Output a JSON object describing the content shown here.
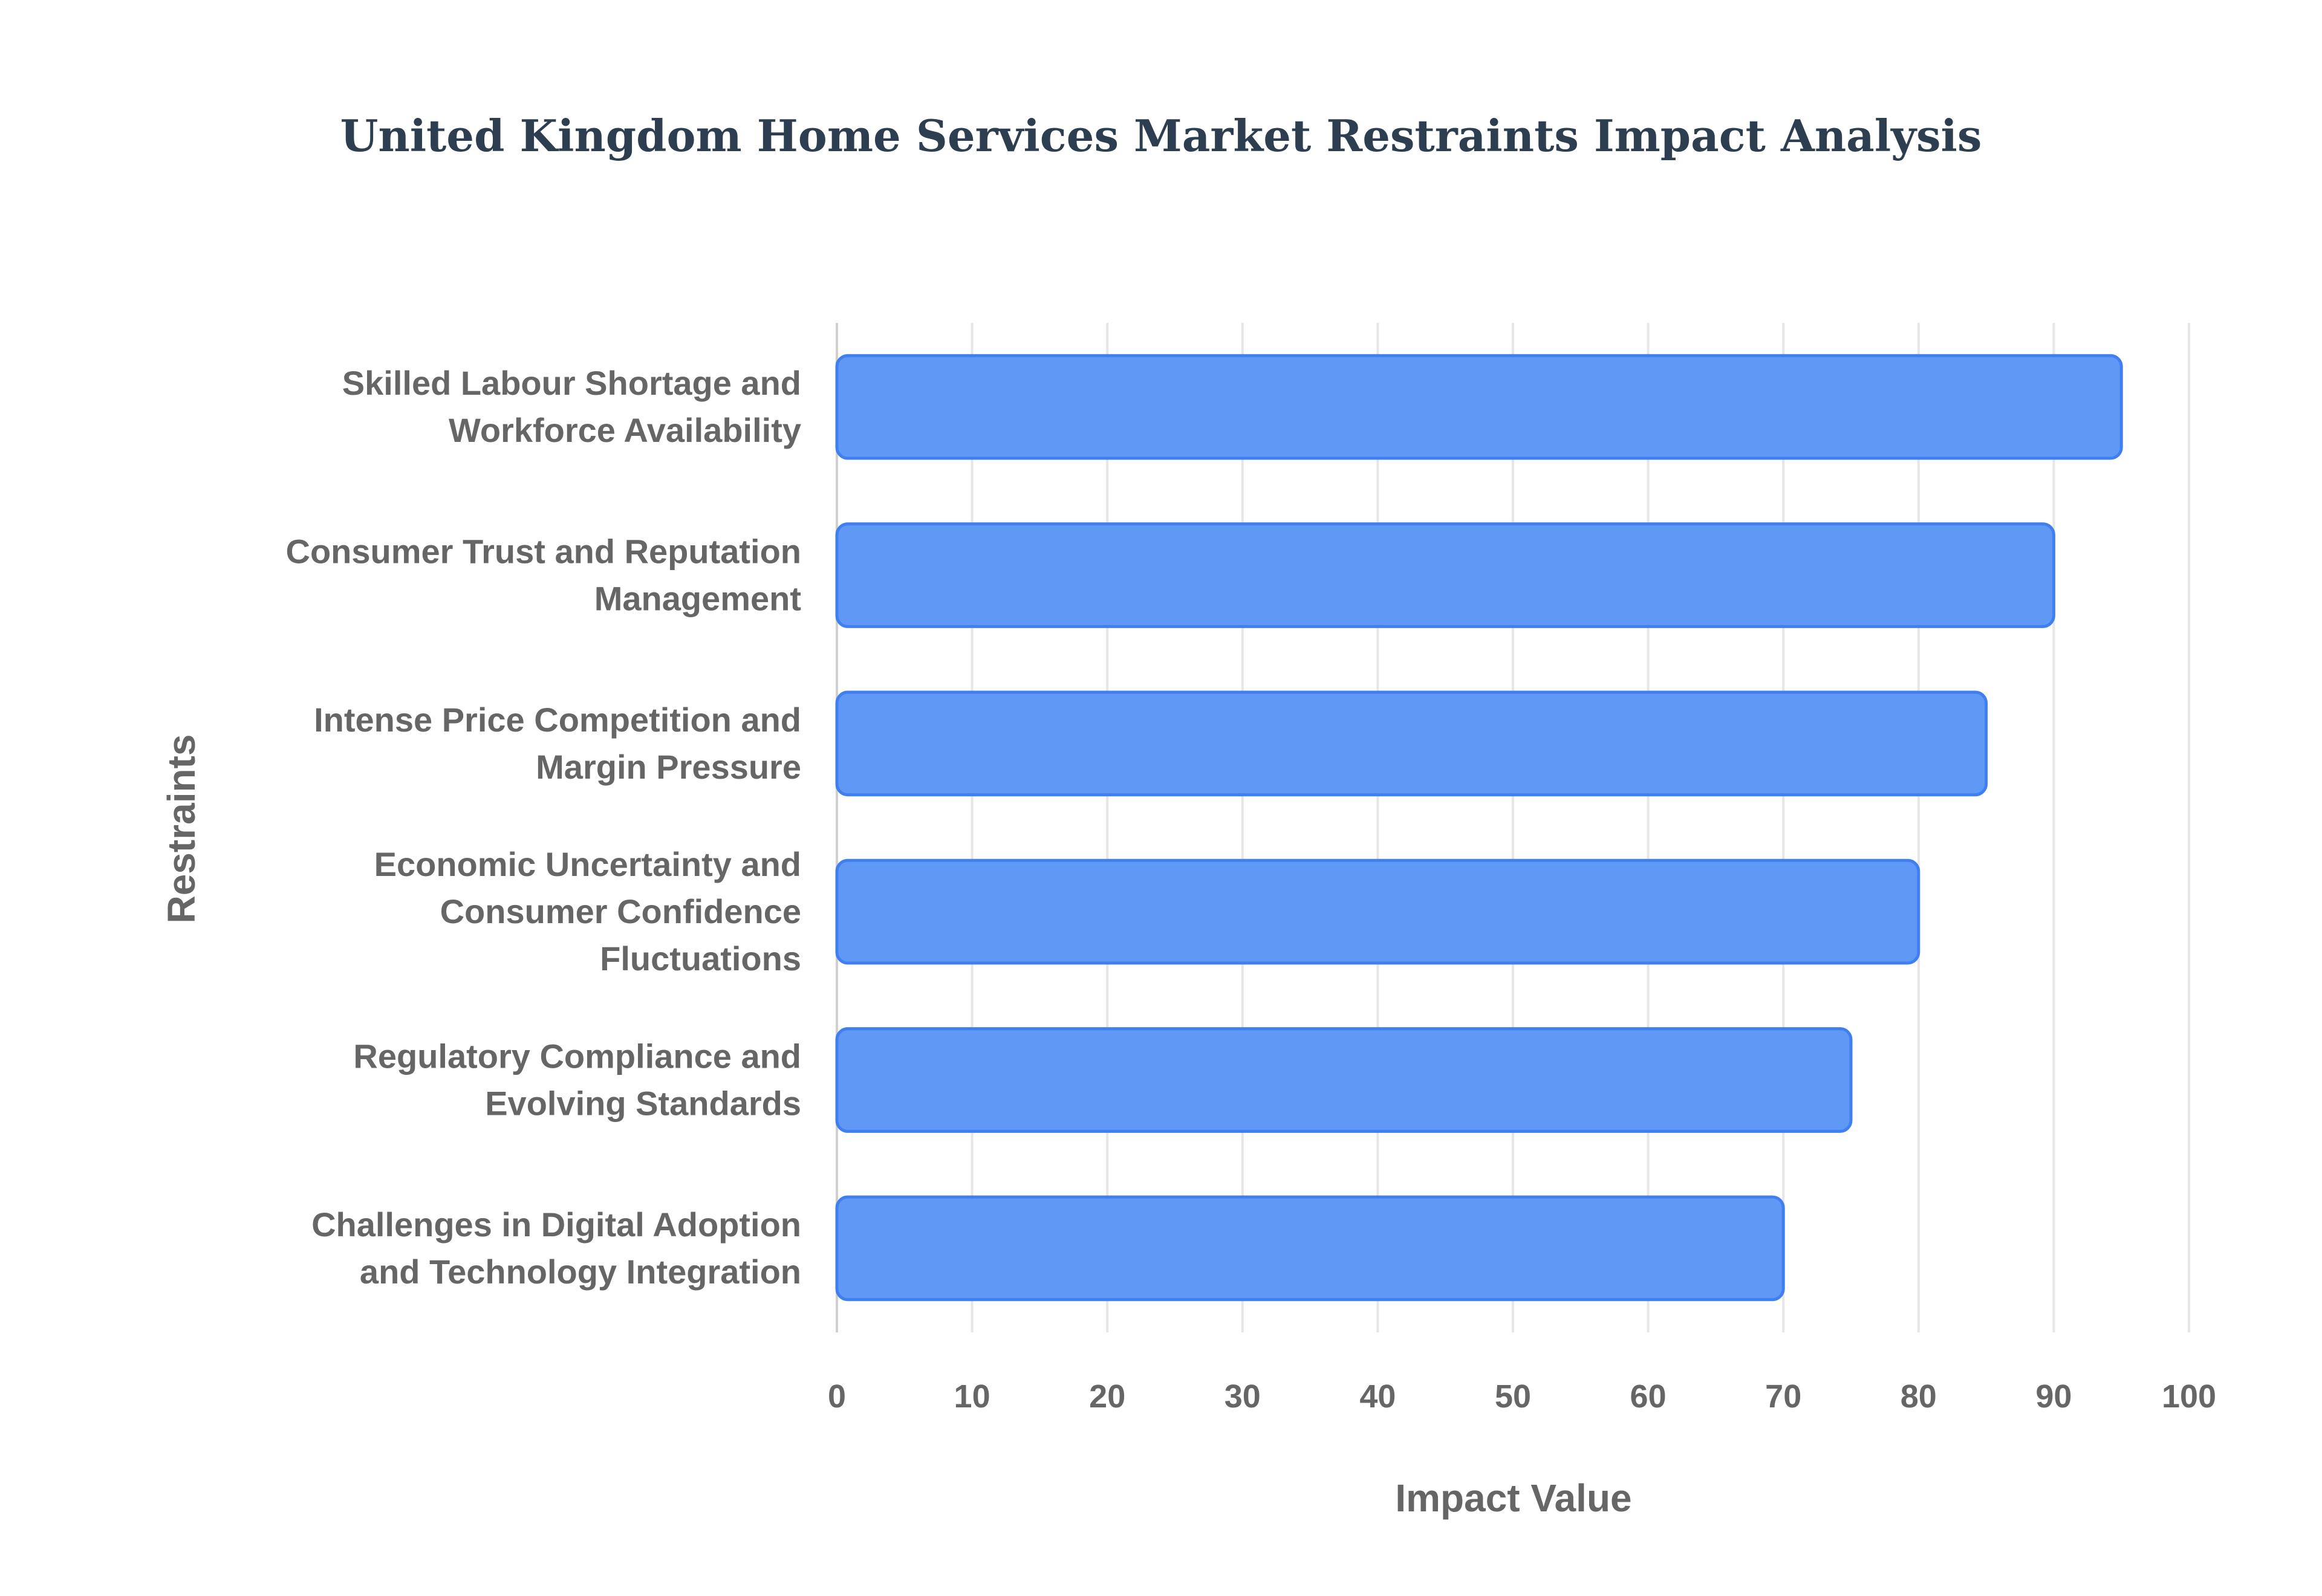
{
  "chart_data": {
    "type": "bar",
    "orientation": "horizontal",
    "title": "United Kingdom Home Services Market Restraints Impact Analysis",
    "xlabel": "Impact Value",
    "ylabel": "Restraints",
    "xlim": [
      0,
      100
    ],
    "xticks": [
      0,
      10,
      20,
      30,
      40,
      50,
      60,
      70,
      80,
      90,
      100
    ],
    "grid": true,
    "categories": [
      [
        "Skilled Labour Shortage and",
        "Workforce Availability"
      ],
      [
        "Consumer Trust and Reputation",
        "Management"
      ],
      [
        "Intense Price Competition and",
        "Margin Pressure"
      ],
      [
        "Economic Uncertainty and",
        "Consumer Confidence",
        "Fluctuations"
      ],
      [
        "Regulatory Compliance and",
        "Evolving Standards"
      ],
      [
        "Challenges in Digital Adoption",
        "and Technology Integration"
      ]
    ],
    "values": [
      95,
      90,
      85,
      80,
      75,
      70
    ],
    "colors": {
      "fill": "#6099f5",
      "stroke": "#3f7fef",
      "grid": "#e6e6e6",
      "text": "#666666",
      "title": "#2c3e50"
    }
  }
}
